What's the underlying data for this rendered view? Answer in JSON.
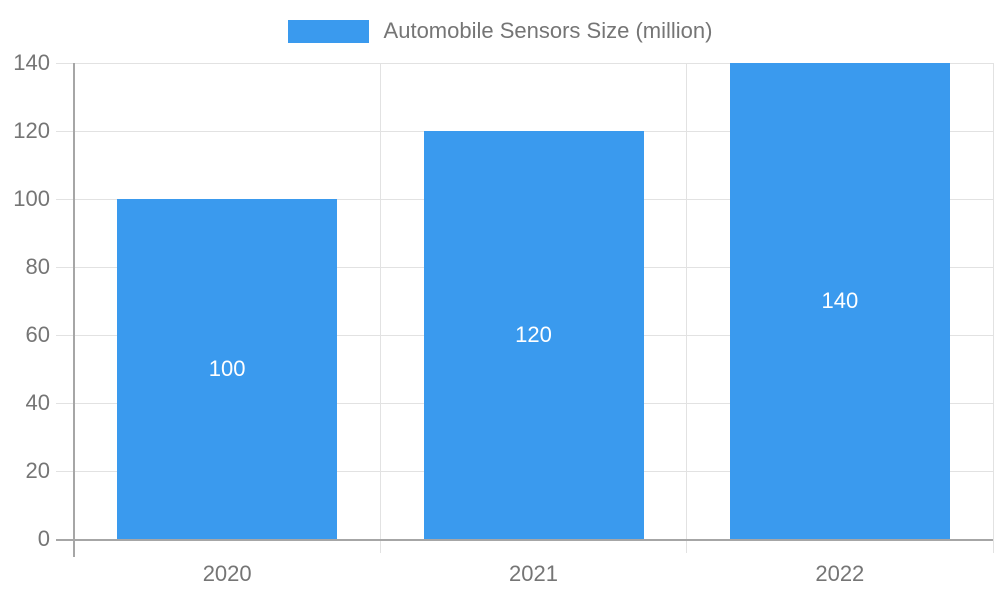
{
  "legend": {
    "label": "Automobile Sensors Size (million)",
    "position": "top"
  },
  "chart_data": {
    "type": "bar",
    "title": "",
    "xlabel": "",
    "ylabel": "",
    "categories": [
      "2020",
      "2021",
      "2022"
    ],
    "values": [
      100,
      120,
      140
    ],
    "series": [
      {
        "name": "Automobile Sensors Size (million)",
        "values": [
          100,
          120,
          140
        ]
      }
    ],
    "bar_labels": [
      "100",
      "120",
      "140"
    ],
    "ylim": [
      0,
      140
    ],
    "yticks": [
      0,
      20,
      40,
      60,
      80,
      100,
      120,
      140
    ],
    "grid": true,
    "legend_position": "top",
    "colors": {
      "bar": "#3a9aee",
      "bar_label": "#ffffff",
      "axis": "#a6a6a6",
      "grid": "#e2e2e2",
      "text": "#757575"
    }
  }
}
